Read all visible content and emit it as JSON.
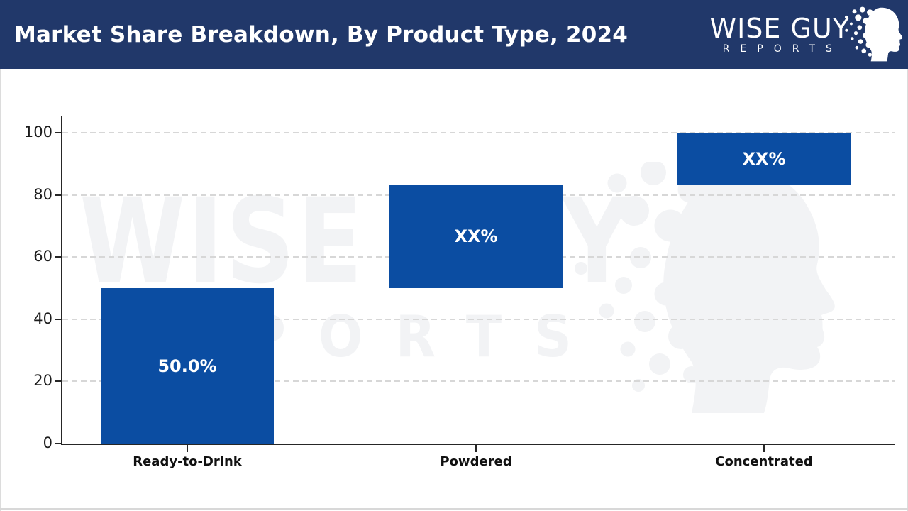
{
  "header": {
    "title": "Market Share Breakdown, By Product Type, 2024",
    "logo_line1": "WISE GUY",
    "logo_line2": "REPORTS"
  },
  "watermark": {
    "line1": "WISE GUY",
    "line2": "REPORTS"
  },
  "chart_data": {
    "type": "bar",
    "variant": "waterfall",
    "title": "Market Share Breakdown, By Product Type, 2024",
    "categories": [
      "Ready-to-Drink",
      "Powdered",
      "Concentrated"
    ],
    "segments": [
      {
        "category": "Ready-to-Drink",
        "start": 0,
        "end": 50.0,
        "label": "50.0%"
      },
      {
        "category": "Powdered",
        "start": 50.0,
        "end": 83.3,
        "label": "XX%"
      },
      {
        "category": "Concentrated",
        "start": 83.3,
        "end": 100.0,
        "label": "XX%"
      }
    ],
    "xlabel": "",
    "ylabel": "",
    "yticks": [
      0,
      20,
      40,
      60,
      80,
      100
    ],
    "ylim": [
      0,
      105
    ],
    "grid": "horizontal-dashed",
    "legend": "none",
    "colors": {
      "bar": "#0b4da2",
      "bar_label": "#ffffff",
      "axis": "#262626",
      "gridline": "#d7d7d7",
      "header_bg": "#21386a",
      "header_text": "#ffffff",
      "watermark": "#f2f3f5"
    }
  }
}
